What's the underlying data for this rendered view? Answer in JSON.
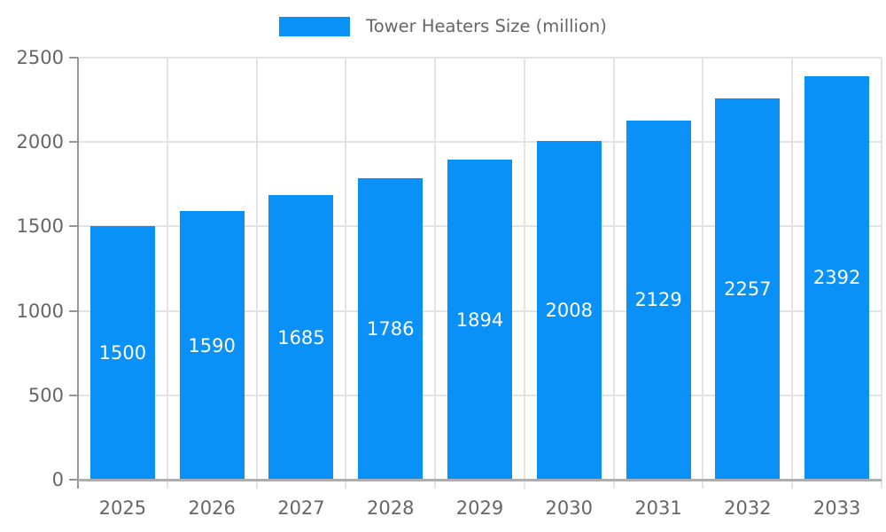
{
  "chart_data": {
    "type": "bar",
    "title": "Tower Heaters Size (million)",
    "legend_entries": [
      "Tower Heaters Size (million)"
    ],
    "legend_position": "top",
    "categories": [
      "2025",
      "2026",
      "2027",
      "2028",
      "2029",
      "2030",
      "2031",
      "2032",
      "2033"
    ],
    "values": [
      1500,
      1590,
      1685,
      1786,
      1894,
      2008,
      2129,
      2257,
      2392
    ],
    "xlabel": "",
    "ylabel": "",
    "ylim": [
      0,
      2500
    ],
    "ytick_step": 500,
    "ytick_labels": [
      "0",
      "500",
      "1000",
      "1500",
      "2000",
      "2500"
    ],
    "grid": true,
    "bar_labels_shown": true,
    "colors": {
      "bar": "#0991f8",
      "bar_label_text": "#ffffff",
      "axis_text": "#666666",
      "gridline": "#e3e3e3",
      "y_axis_line": "#979797",
      "x_axis_line": "#aeaeae"
    }
  }
}
